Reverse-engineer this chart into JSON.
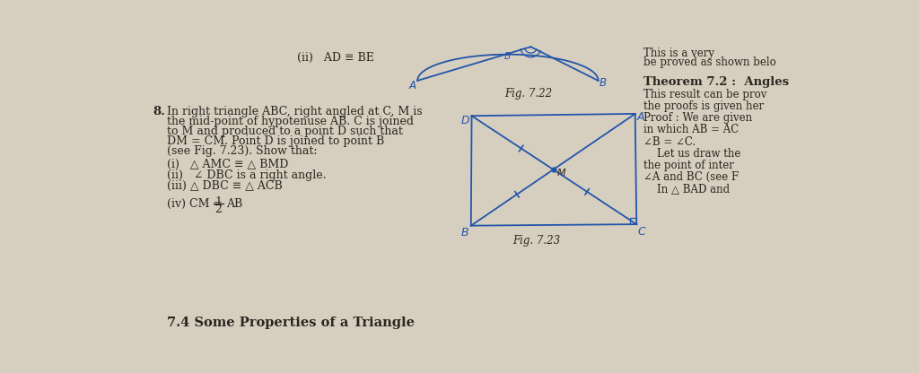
{
  "bg_color": "#d6cfc0",
  "text_color": "#2a2520",
  "blue_color": "#2255aa",
  "fig_width": 10.24,
  "fig_height": 4.16,
  "top_left_text": "(ii)   AD ≡ BE",
  "problem_number": "8.",
  "problem_text_lines": [
    "In right triangle ABC, right angled at C, M is",
    "the mid-point of hypotenuse AB. C is joined",
    "to M and produced to a point D such that",
    "DM = CM. Point D is joined to point B",
    "(see Fig. 7.23). Show that:"
  ],
  "sub_items": [
    "(i)   △ AMC ≡ △ BMD",
    "(ii)   ∠ DBC is a right angle.",
    "(iii) △ DBC ≡ △ ACB"
  ],
  "fig722_label": "Fig. 7.22",
  "fig723_label": "Fig. 7.23",
  "theorem_header": "Theorem 7.2 :  Angles",
  "theorem_lines": [
    "This result can be prov",
    "the proofs is given her",
    "Proof : We are given",
    "in which AB = AC",
    "∠B = ∠C.",
    "    Let us draw the",
    "the point of inter",
    "∠A and BC (see F",
    "    In △ BAD and"
  ],
  "proved_lines": [
    "This is a very",
    "be proved as shown belo"
  ],
  "bottom_text": "7.4 Some Properties of a Triangle"
}
